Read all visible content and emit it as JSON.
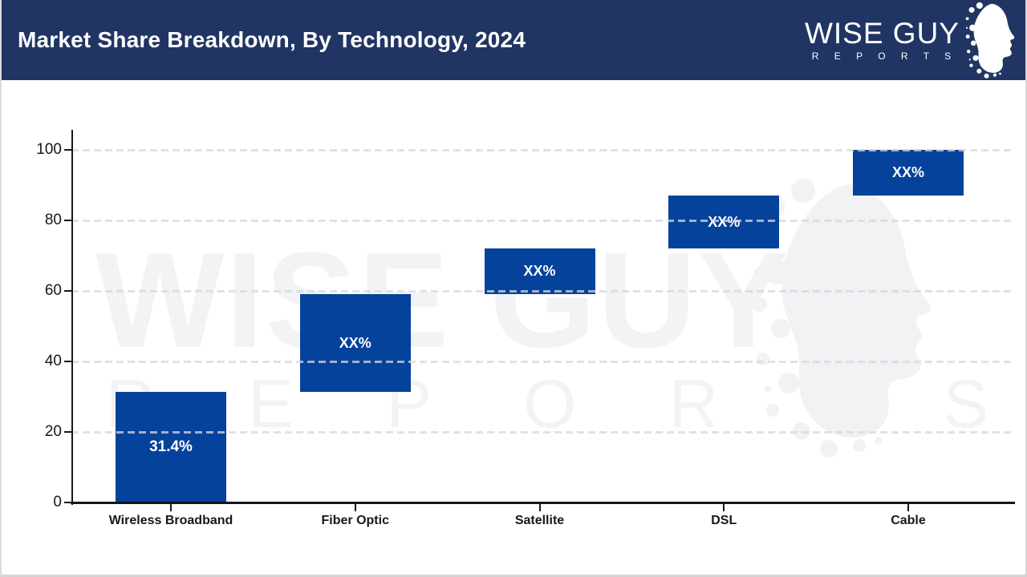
{
  "header": {
    "title": "Market Share Breakdown, By Technology, 2024",
    "logo": {
      "line1": "WISE GUY",
      "line2": "R E P O R T S",
      "face_icon": "dotted-head-profile-icon"
    }
  },
  "watermark": {
    "line1": "WISE GUY",
    "line2": "R E P O R T S",
    "face_icon": "dotted-head-profile-watermark"
  },
  "colors": {
    "header_bg": "#213564",
    "bar": "#05429b",
    "bar_label": "#ffffff",
    "axis": "#15181d",
    "grid": "#d6d8dc",
    "watermark": "#f2f3f5"
  },
  "chart_data": {
    "type": "bar",
    "subtype": "floating-waterfall",
    "title": "Market Share Breakdown, By Technology, 2024",
    "categories": [
      "Wireless Broadband",
      "Fiber Optic",
      "Satellite",
      "DSL",
      "Cable"
    ],
    "bars": [
      {
        "category": "Wireless Broadband",
        "start": 0,
        "end": 31.4,
        "label": "31.4%"
      },
      {
        "category": "Fiber Optic",
        "start": 31.4,
        "end": 59,
        "label": "XX%"
      },
      {
        "category": "Satellite",
        "start": 59,
        "end": 72,
        "label": "XX%"
      },
      {
        "category": "DSL",
        "start": 72,
        "end": 87,
        "label": "XX%"
      },
      {
        "category": "Cable",
        "start": 87,
        "end": 100,
        "label": "XX%"
      }
    ],
    "xlabel": "",
    "ylabel": "",
    "ylim": [
      0,
      100
    ],
    "yticks": [
      0,
      20,
      40,
      60,
      80,
      100
    ],
    "grid": "dashed-horizontal",
    "legend": "none",
    "bar_color": "#05429b",
    "label_color": "#ffffff"
  }
}
